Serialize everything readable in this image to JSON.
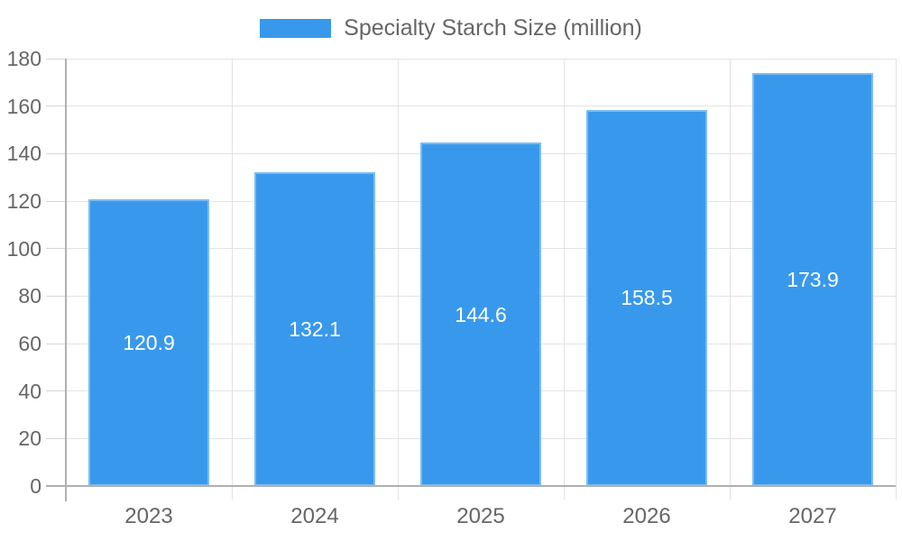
{
  "chart_data": {
    "type": "bar",
    "legend": "Specialty Starch Size (million)",
    "legend_position": "top",
    "categories": [
      "2023",
      "2024",
      "2025",
      "2026",
      "2027"
    ],
    "series": [
      {
        "name": "Specialty Starch Size (million)",
        "values": [
          120.9,
          132.1,
          144.6,
          158.5,
          173.9
        ]
      }
    ],
    "value_labels": [
      "120.9",
      "132.1",
      "144.6",
      "158.5",
      "173.9"
    ],
    "xlabel": "",
    "ylabel": "",
    "ylim": [
      0,
      180
    ],
    "ytick_step": 20,
    "yticks": [
      0,
      20,
      40,
      60,
      80,
      100,
      120,
      140,
      160,
      180
    ],
    "grid": true,
    "colors": {
      "bar_fill": "#3899ec",
      "bar_edge_highlight": "rgba(255,255,255,0.35)",
      "gridline": "#e3e3e3",
      "tick_mark": "#d6d6d6",
      "axis_line": "#b0b0b0",
      "tick_text": "#666666",
      "legend_text": "#666666",
      "value_label_text": "#ffffff",
      "background": "#ffffff"
    }
  }
}
